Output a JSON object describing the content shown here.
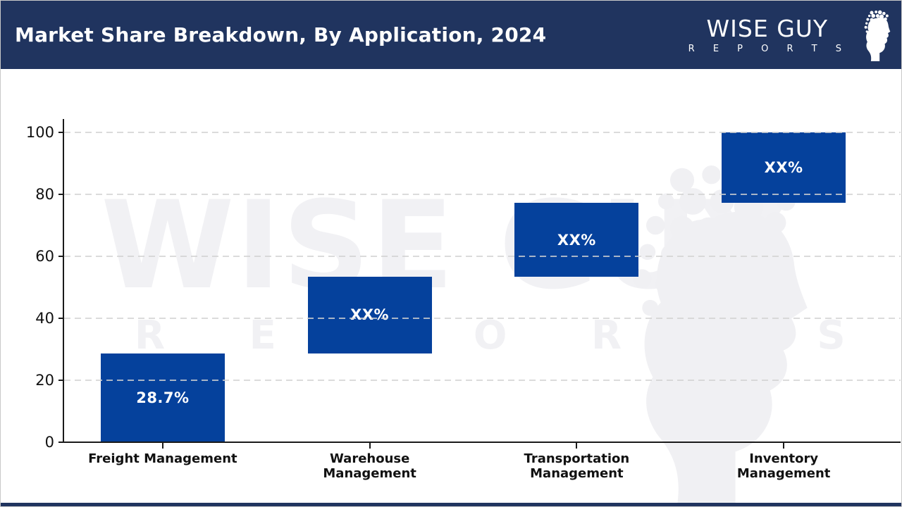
{
  "header": {
    "title": "Market Share Breakdown, By Application, 2024",
    "logo": {
      "line1": "WISE GUY",
      "line2": "R E P O R T S"
    }
  },
  "watermark": {
    "line1": "WISE GUY",
    "line2": "R E P O R T S"
  },
  "chart_data": {
    "type": "bar",
    "subtype": "waterfall",
    "title": "Market Share Breakdown, By Application, 2024",
    "categories": [
      "Freight Management",
      "Warehouse Management",
      "Transportation Management",
      "Inventory Management"
    ],
    "category_label_lines": [
      [
        "Freight Management"
      ],
      [
        "Warehouse",
        "Management"
      ],
      [
        "Transportation",
        "Management"
      ],
      [
        "Inventory",
        "Management"
      ]
    ],
    "series": [
      {
        "name": "Market Share (%)",
        "segments": [
          {
            "category": "Freight Management",
            "start": 0,
            "end": 28.7,
            "label": "28.7%"
          },
          {
            "category": "Warehouse Management",
            "start": 28.7,
            "end": 53.3,
            "label": "XX%"
          },
          {
            "category": "Transportation Management",
            "start": 53.3,
            "end": 77.1,
            "label": "XX%"
          },
          {
            "category": "Inventory Management",
            "start": 77.1,
            "end": 100,
            "label": "XX%"
          }
        ]
      }
    ],
    "ylim": [
      0,
      100
    ],
    "yticks": [
      0,
      20,
      40,
      60,
      80,
      100
    ],
    "grid": "horizontal-dashed",
    "legend": "none",
    "colors": {
      "bar": "#05419c",
      "bar_label": "#ffffff",
      "axis": "#1a1a1a",
      "grid": "#d2d2d2",
      "header_bg": "#20345f",
      "watermark": "#f1f1f4"
    }
  }
}
